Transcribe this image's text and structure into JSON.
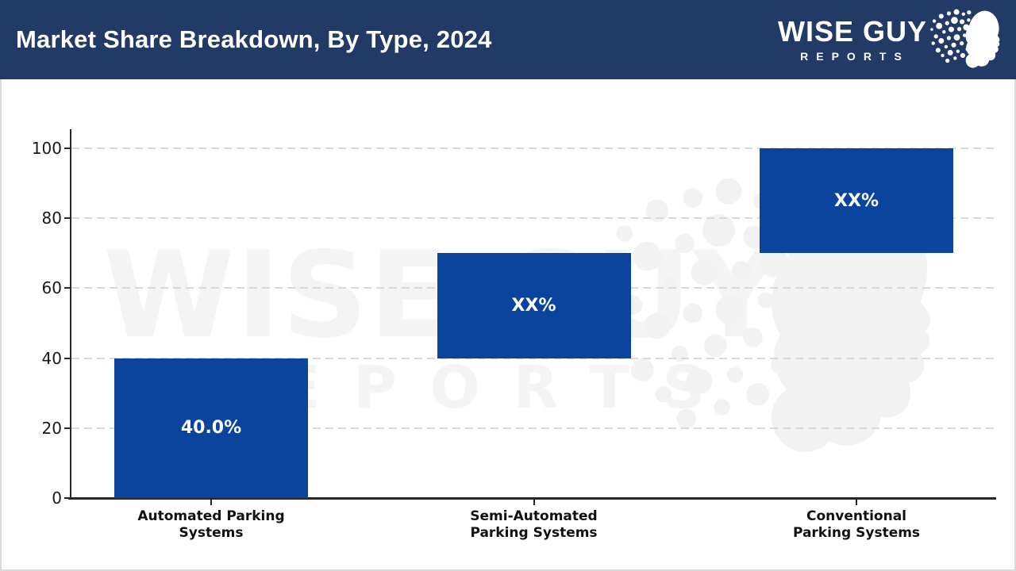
{
  "header": {
    "title": "Market Share Breakdown, By Type, 2024",
    "logo": {
      "line1": "WISE GUY",
      "line2": "REPORTS"
    }
  },
  "watermark": {
    "line1": "WISE GUY",
    "line2": "REPORTS"
  },
  "chart_data": {
    "type": "bar",
    "variant": "floating-range-waterfall",
    "title": "Market Share Breakdown, By Type, 2024",
    "categories": [
      "Automated Parking\nSystems",
      "Semi-Automated\nParking Systems",
      "Conventional\nParking Systems"
    ],
    "bars": [
      {
        "category": "Automated Parking Systems",
        "start": 0,
        "end": 40,
        "label": "40.0%"
      },
      {
        "category": "Semi-Automated Parking Systems",
        "start": 40,
        "end": 70,
        "label": "XX%"
      },
      {
        "category": "Conventional Parking Systems",
        "start": 70,
        "end": 100,
        "label": "XX%"
      }
    ],
    "xlabel": "",
    "ylabel": "",
    "ylim": [
      0,
      100
    ],
    "yticks": [
      0,
      20,
      40,
      60,
      80,
      100
    ],
    "grid": "horizontal-dashed",
    "legend": "none"
  },
  "colors": {
    "header_bg": "#223a66",
    "bar": "#0a449c",
    "grid": "#d9d9d9",
    "axis": "#262626",
    "bar_label_text": "#ffffff",
    "watermark": "#f2f2f2"
  }
}
